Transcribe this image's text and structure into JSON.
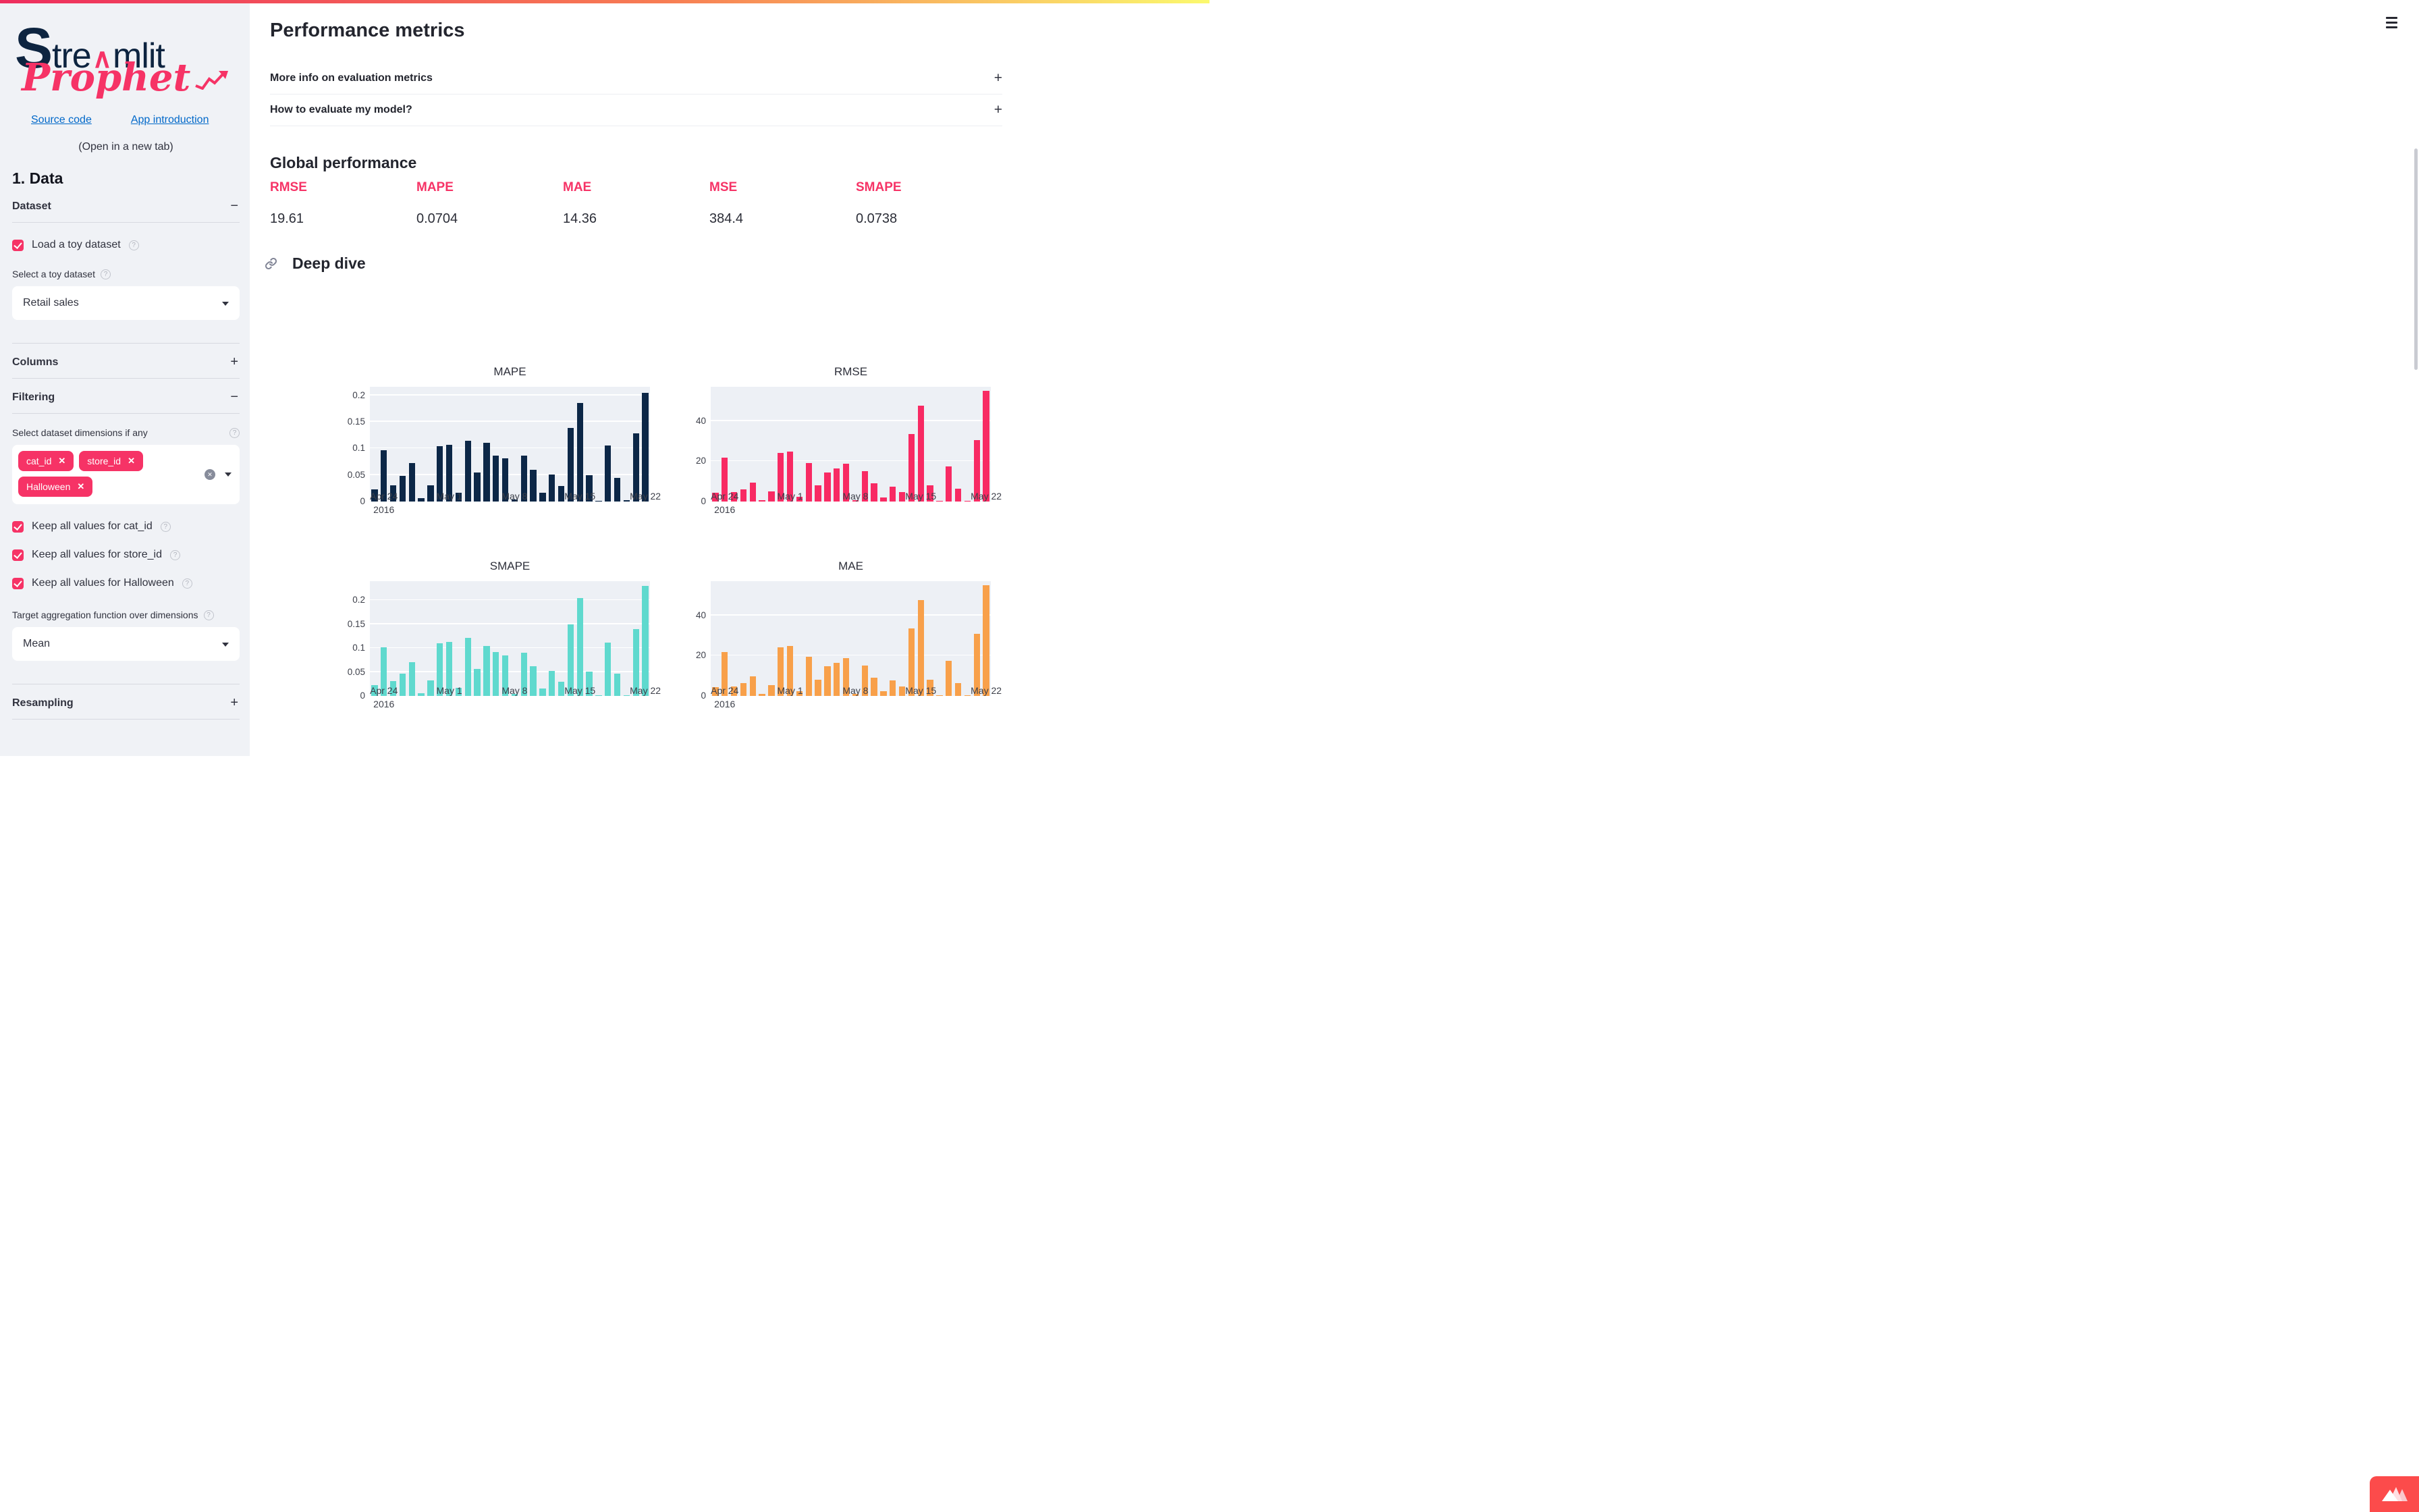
{
  "page": {
    "decoration_colors": [
      "#ee2d5e",
      "#f77d53",
      "#fbf96e"
    ],
    "accent_pink": "#f63366",
    "badge_color": "#fc4b4b"
  },
  "icons": {
    "help": "?",
    "tag_close": "✕",
    "clear_all": "✕"
  },
  "sidebar": {
    "logo": {
      "part_s": "S",
      "part_tre": "tre",
      "caret": "∧",
      "part_mlit": "mlit",
      "script": "Prophet"
    },
    "links": [
      {
        "label": "Source code"
      },
      {
        "label": "App introduction"
      }
    ],
    "open_tab_note": "(Open in a new tab)",
    "section_heading": "1. Data",
    "dataset": {
      "label": "Dataset",
      "toggle": "−",
      "toy_checkbox_label": "Load a toy dataset",
      "toy_select_label": "Select a toy dataset",
      "toy_select_value": "Retail sales"
    },
    "columns": {
      "label": "Columns",
      "toggle": "+"
    },
    "filtering": {
      "label": "Filtering",
      "toggle": "−",
      "dimensions_label": "Select dataset dimensions if any",
      "dimension_tags": [
        "cat_id",
        "store_id",
        "Halloween"
      ],
      "keep_checkboxes": [
        "Keep all values for cat_id",
        "Keep all values for store_id",
        "Keep all values for Halloween"
      ],
      "agg_label": "Target aggregation function over dimensions",
      "agg_value": "Mean"
    },
    "resampling": {
      "label": "Resampling",
      "toggle": "+"
    }
  },
  "main": {
    "title": "Performance metrics",
    "expanders": [
      {
        "label": "More info on evaluation metrics",
        "toggle": "+"
      },
      {
        "label": "How to evaluate my model?",
        "toggle": "+"
      }
    ],
    "global_performance": {
      "heading": "Global performance",
      "metrics": [
        {
          "label": "RMSE",
          "value": "19.61"
        },
        {
          "label": "MAPE",
          "value": "0.0704"
        },
        {
          "label": "MAE",
          "value": "14.36"
        },
        {
          "label": "MSE",
          "value": "384.4"
        },
        {
          "label": "SMAPE",
          "value": "0.0738"
        }
      ]
    },
    "deep_dive_heading": "Deep dive"
  },
  "chart_data": [
    {
      "type": "bar",
      "title": "MAPE",
      "color": "#0c2747",
      "ylim": [
        0,
        0.216
      ],
      "grid": true,
      "legend": "none",
      "yticks": [
        0,
        0.05,
        0.1,
        0.15,
        0.2
      ],
      "ytick_labels": [
        "0",
        "0.05",
        "0.1",
        "0.15",
        "0.2"
      ],
      "x_ticks": [
        {
          "index": 1,
          "label": "Apr 24",
          "sublabel": "2016"
        },
        {
          "index": 8,
          "label": "May 1",
          "sublabel": ""
        },
        {
          "index": 15,
          "label": "May 8",
          "sublabel": ""
        },
        {
          "index": 22,
          "label": "May 15",
          "sublabel": ""
        },
        {
          "index": 29,
          "label": "May 22",
          "sublabel": ""
        }
      ],
      "values": [
        0.023,
        0.096,
        0.03,
        0.048,
        0.073,
        0.006,
        0.031,
        0.104,
        0.107,
        0.017,
        0.114,
        0.055,
        0.11,
        0.087,
        0.081,
        0.004,
        0.086,
        0.06,
        0.016,
        0.051,
        0.029,
        0.139,
        0.186,
        0.05,
        0.001,
        0.106,
        0.045,
        0.002,
        0.128,
        0.205
      ]
    },
    {
      "type": "bar",
      "title": "RMSE",
      "color": "#f82a63",
      "ylim": [
        0,
        57
      ],
      "grid": true,
      "legend": "none",
      "yticks": [
        0,
        20,
        40
      ],
      "ytick_labels": [
        "0",
        "20",
        "40"
      ],
      "x_ticks": [
        {
          "index": 1,
          "label": "Apr 24",
          "sublabel": "2016"
        },
        {
          "index": 8,
          "label": "May 1",
          "sublabel": ""
        },
        {
          "index": 15,
          "label": "May 8",
          "sublabel": ""
        },
        {
          "index": 22,
          "label": "May 15",
          "sublabel": ""
        },
        {
          "index": 29,
          "label": "May 22",
          "sublabel": ""
        }
      ],
      "values": [
        4.5,
        21.8,
        4.7,
        6.2,
        9.5,
        0.8,
        5.2,
        24.2,
        24.8,
        2.3,
        19.2,
        8.2,
        14.5,
        16.5,
        18.8,
        0.8,
        15.0,
        8.9,
        2.1,
        7.5,
        4.6,
        33.5,
        47.5,
        7.9,
        0.1,
        17.5,
        6.3,
        0.4,
        30.5,
        55.0
      ]
    },
    {
      "type": "bar",
      "title": "SMAPE",
      "color": "#5fd9ce",
      "ylim": [
        0,
        0.2395
      ],
      "grid": true,
      "legend": "none",
      "yticks": [
        0,
        0.05,
        0.1,
        0.15,
        0.2
      ],
      "ytick_labels": [
        "0",
        "0.05",
        "0.1",
        "0.15",
        "0.2"
      ],
      "x_ticks": [
        {
          "index": 1,
          "label": "Apr 24",
          "sublabel": "2016"
        },
        {
          "index": 8,
          "label": "May 1",
          "sublabel": ""
        },
        {
          "index": 15,
          "label": "May 8",
          "sublabel": ""
        },
        {
          "index": 22,
          "label": "May 15",
          "sublabel": ""
        },
        {
          "index": 29,
          "label": "May 22",
          "sublabel": ""
        }
      ],
      "values": [
        0.023,
        0.101,
        0.031,
        0.047,
        0.071,
        0.006,
        0.032,
        0.11,
        0.113,
        0.017,
        0.121,
        0.057,
        0.104,
        0.091,
        0.085,
        0.004,
        0.09,
        0.062,
        0.016,
        0.052,
        0.03,
        0.15,
        0.205,
        0.051,
        0.001,
        0.111,
        0.046,
        0.002,
        0.139,
        0.23
      ]
    },
    {
      "type": "bar",
      "title": "MAE",
      "color": "#f8a04a",
      "ylim": [
        0,
        57
      ],
      "grid": true,
      "legend": "none",
      "yticks": [
        0,
        20,
        40
      ],
      "ytick_labels": [
        "0",
        "20",
        "40"
      ],
      "x_ticks": [
        {
          "index": 1,
          "label": "Apr 24",
          "sublabel": "2016"
        },
        {
          "index": 8,
          "label": "May 1",
          "sublabel": ""
        },
        {
          "index": 15,
          "label": "May 8",
          "sublabel": ""
        },
        {
          "index": 22,
          "label": "May 15",
          "sublabel": ""
        },
        {
          "index": 29,
          "label": "May 22",
          "sublabel": ""
        }
      ],
      "values": [
        4.4,
        21.9,
        4.7,
        6.3,
        9.7,
        0.9,
        5.3,
        24.3,
        24.9,
        2.5,
        19.4,
        8.2,
        14.6,
        16.6,
        18.8,
        0.9,
        15.0,
        9.2,
        2.2,
        7.7,
        4.8,
        33.5,
        47.5,
        7.9,
        0.2,
        17.5,
        6.5,
        0.4,
        30.8,
        55.0
      ]
    }
  ]
}
